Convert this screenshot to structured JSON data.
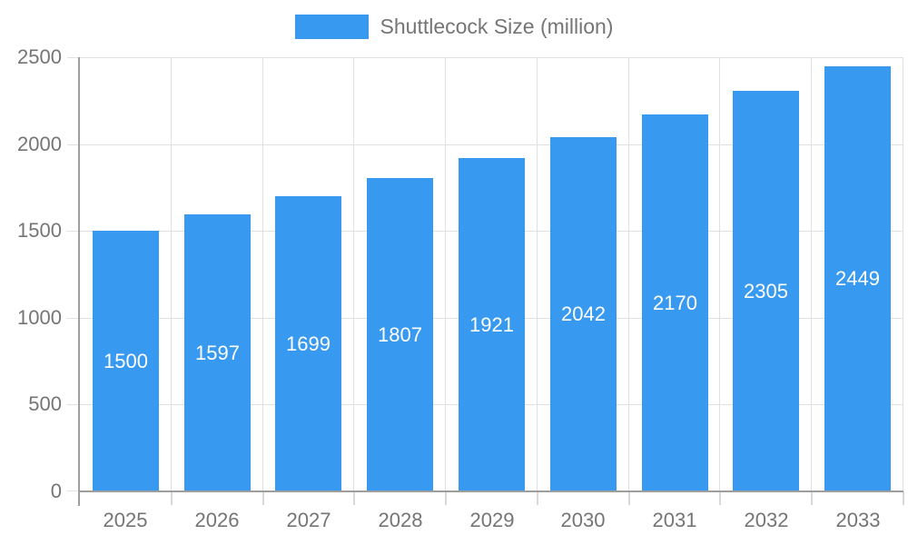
{
  "legend": {
    "label": "Shuttlecock Size (million)"
  },
  "chart_data": {
    "type": "bar",
    "title": "",
    "categories": [
      "2025",
      "2026",
      "2027",
      "2028",
      "2029",
      "2030",
      "2031",
      "2032",
      "2033"
    ],
    "series": [
      {
        "name": "Shuttlecock Size (million)",
        "values": [
          1500,
          1597,
          1699,
          1807,
          1921,
          2042,
          2170,
          2305,
          2449
        ]
      }
    ],
    "xlabel": "",
    "ylabel": "",
    "ylim": [
      0,
      2500
    ],
    "yticks": [
      0,
      500,
      1000,
      1500,
      2000,
      2500
    ],
    "grid": true,
    "legend_position": "top-center",
    "value_labels_position": "inside-center",
    "bar_color": "#3899F0",
    "grid_color": "#E0E0E0",
    "axis_color": "#9E9E9E",
    "tick_color": "#D9D9D9",
    "label_color": "#757575",
    "value_label_color": "#FFFFFF"
  }
}
